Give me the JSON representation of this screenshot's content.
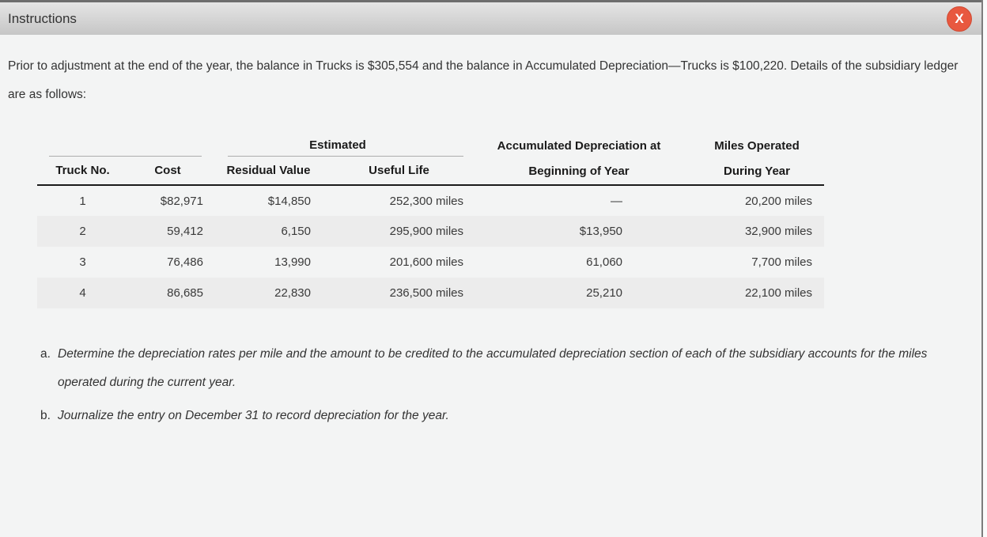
{
  "header": {
    "title": "Instructions",
    "close_label": "X",
    "close_button_color": "#e8583f"
  },
  "intro": {
    "text": "Prior to adjustment at the end of the year, the balance in Trucks is $305,554 and the balance in Accumulated Depreciation—Trucks is $100,220. Details of the subsidiary ledger are as follows:"
  },
  "table": {
    "group_headers": {
      "estimated": "Estimated"
    },
    "headers": {
      "truck_no": "Truck No.",
      "cost": "Cost",
      "residual_value": "Residual Value",
      "useful_life": "Useful Life",
      "accum_line1": "Accumulated Depreciation at",
      "accum_line2": "Beginning of Year",
      "miles_line1": "Miles Operated",
      "miles_line2": "During Year"
    },
    "rows": [
      [
        "1",
        "$82,971",
        "$14,850",
        "252,300 miles",
        "—",
        "20,200 miles"
      ],
      [
        "2",
        "59,412",
        "6,150",
        "295,900 miles",
        "$13,950",
        "32,900 miles"
      ],
      [
        "3",
        "76,486",
        "13,990",
        "201,600 miles",
        "61,060",
        "7,700 miles"
      ],
      [
        "4",
        "86,685",
        "22,830",
        "236,500 miles",
        "25,210",
        "22,100 miles"
      ]
    ]
  },
  "tasks": [
    {
      "label": "a.",
      "text": "Determine the depreciation rates per mile and the amount to be credited to the accumulated depreciation section of each of the subsidiary accounts for the miles operated during the current year."
    },
    {
      "label": "b.",
      "text": "Journalize the entry on December 31 to record depreciation for the year."
    }
  ]
}
